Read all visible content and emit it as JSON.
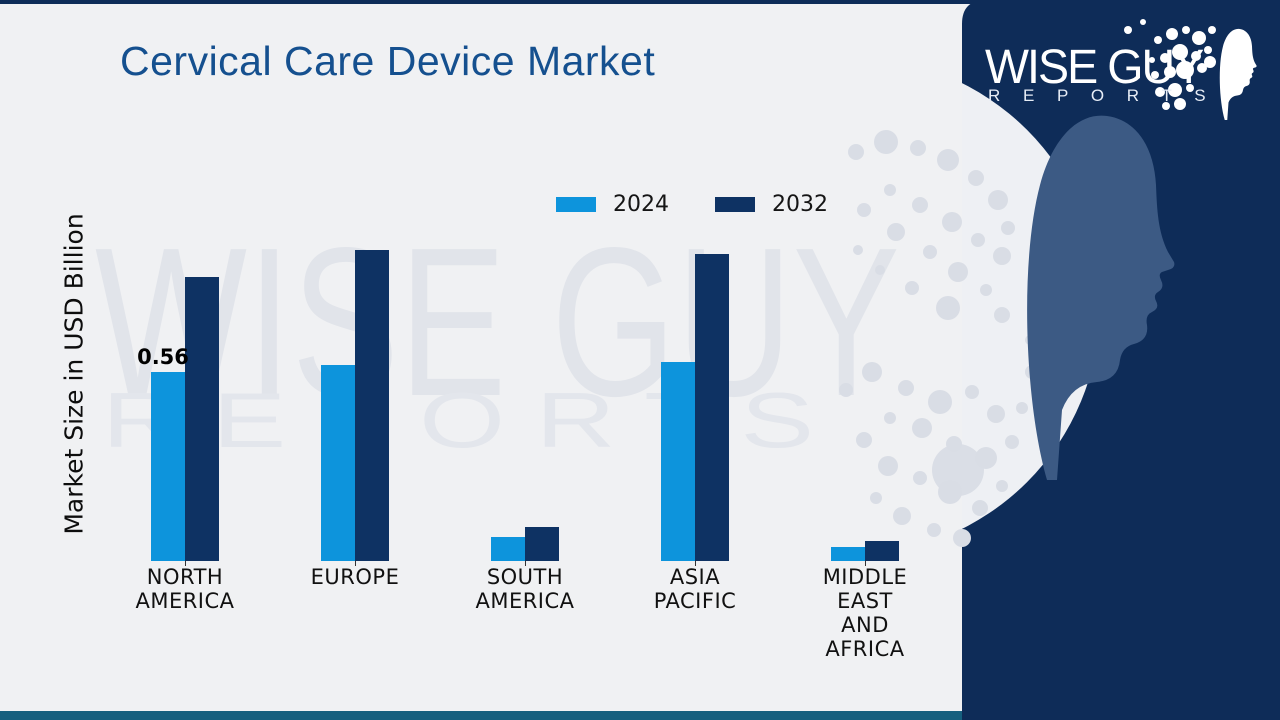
{
  "page": {
    "title": "Cervical Care Device Market"
  },
  "logo": {
    "brand_line1": "WISE GUY",
    "brand_line2": "R E P O R T S"
  },
  "watermark": {
    "line1": "WISE GUY",
    "line2": "R E P O R T S"
  },
  "chart_data": {
    "type": "bar",
    "title": "Cervical Care Device Market",
    "xlabel": "",
    "ylabel": "Market Size in USD Billion",
    "unit": "USD Billion",
    "categories": [
      "NORTH AMERICA",
      "EUROPE",
      "SOUTH AMERICA",
      "ASIA PACIFIC",
      "MIDDLE EAST AND AFRICA"
    ],
    "category_display": [
      "NORTH\nAMERICA",
      "EUROPE",
      "SOUTH\nAMERICA",
      "ASIA\nPACIFIC",
      "MIDDLE\nEAST\nAND\nAFRICA"
    ],
    "series": [
      {
        "name": "2024",
        "color": "#0d94dc",
        "values": [
          0.56,
          0.58,
          0.07,
          0.59,
          0.04
        ]
      },
      {
        "name": "2032",
        "color": "#0e3263",
        "values": [
          0.84,
          0.92,
          0.1,
          0.91,
          0.06
        ]
      }
    ],
    "data_labels": [
      {
        "series": "2024",
        "category_index": 0,
        "text": "0.56"
      }
    ],
    "ylim": [
      0,
      1.0
    ],
    "grid": false,
    "legend_position": "top-center",
    "y_axis_ticks_visible": false
  },
  "colors": {
    "background": "#f0f1f3",
    "title": "#15508f",
    "series_2024": "#0d94dc",
    "series_2032": "#0e3263",
    "panel_navy": "#0e2c58",
    "bottom_bar_teal": "#155f7e",
    "watermark_gray": "#e1e4ea",
    "watermark_dots": "#d9dde5",
    "circle_light": "#eef0f4",
    "face_blue": "#3c5a84"
  }
}
